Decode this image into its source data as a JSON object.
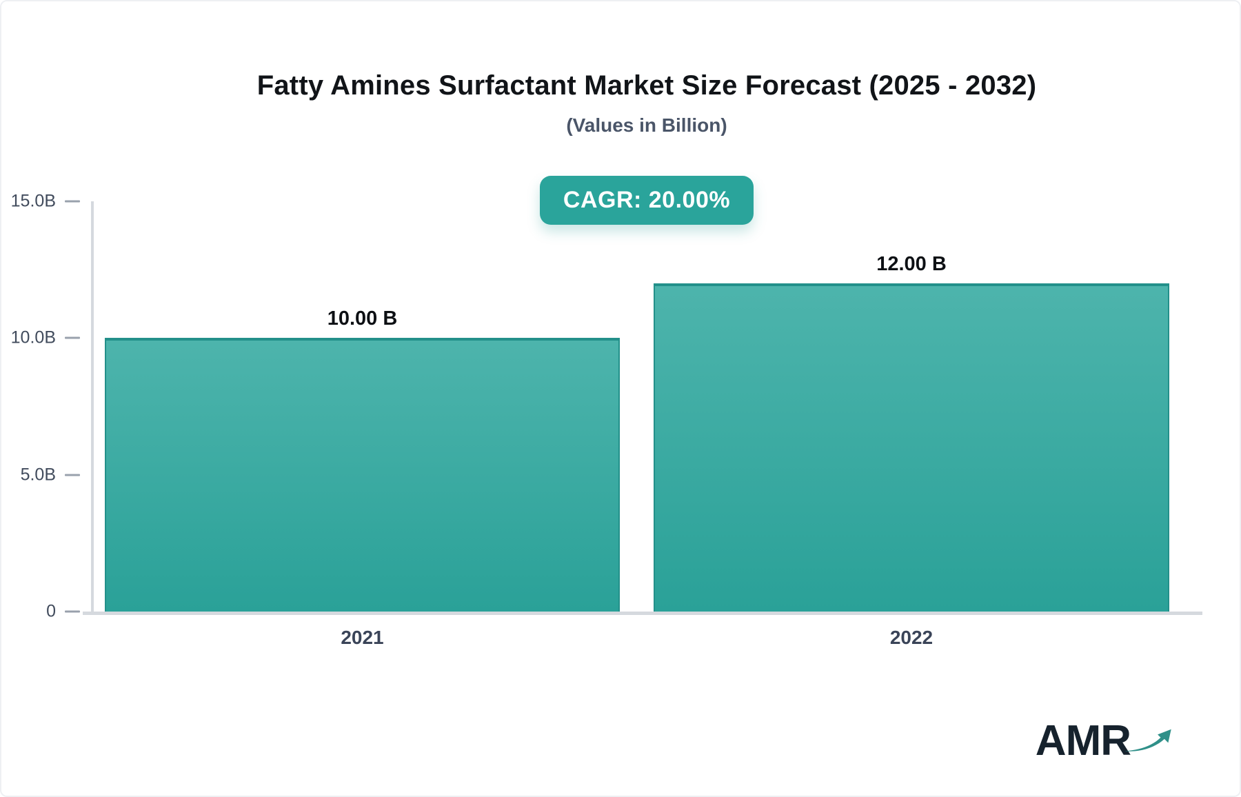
{
  "page": {
    "background": "#ffffff",
    "border_color": "#eef0f3"
  },
  "header": {
    "title": "Fatty Amines Surfactant Market Size Forecast (2025 - 2032)",
    "subtitle": "(Values in Billion)"
  },
  "badge": {
    "label": "CAGR: 20.00%",
    "background": "#2aa49b",
    "text_color": "#ffffff"
  },
  "chart_data": {
    "type": "bar",
    "title": "Fatty Amines Surfactant Market Size Forecast (2025 - 2032)",
    "subtitle": "(Values in Billion)",
    "categories": [
      "2021",
      "2022"
    ],
    "values": [
      10.0,
      12.0
    ],
    "value_labels": [
      "10.00 B",
      "12.00 B"
    ],
    "xlabel": "",
    "ylabel": "",
    "ylim": [
      0,
      15
    ],
    "yticks": [
      {
        "value": 15,
        "label": "15.0B"
      },
      {
        "value": 10,
        "label": "10.0B"
      },
      {
        "value": 5,
        "label": "5.0B"
      },
      {
        "value": 0,
        "label": "0"
      }
    ],
    "grid": false,
    "legend_position": "none",
    "cagr_percent": "20.00%",
    "bar_color_top": "#4db4ac",
    "bar_color_bottom": "#2aa198",
    "bar_border_color": "#23908a",
    "axis_line_color": "#d5d9de",
    "tick_color": "#99a1ac",
    "tick_label_color": "#414b5c",
    "category_label_color": "#3a4458",
    "value_label_color": "#0d1014"
  },
  "logo": {
    "text": "AMR",
    "text_color": "#16222d",
    "arrow_color": "#2f9089"
  }
}
